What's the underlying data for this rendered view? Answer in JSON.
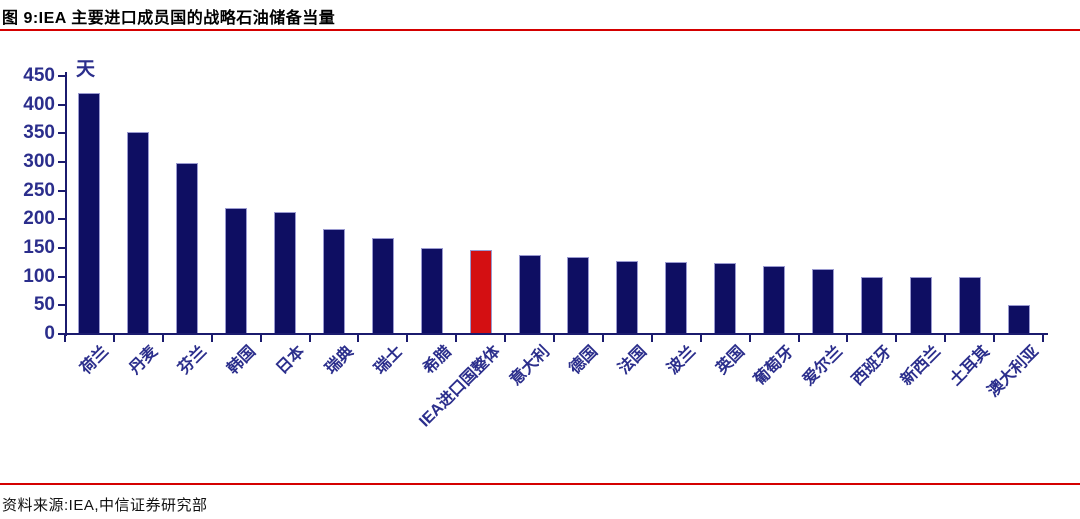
{
  "figure": {
    "title": "图 9:IEA 主要进口成员国的战略石油储备当量",
    "source": "资料来源:IEA,中信证券研究部",
    "rule_color": "#d40000"
  },
  "chart_data": {
    "type": "bar",
    "title": "IEA 主要进口成员国的战略石油储备当量",
    "unit_label": "天",
    "categories": [
      "荷兰",
      "丹麦",
      "芬兰",
      "韩国",
      "日本",
      "瑞典",
      "瑞士",
      "希腊",
      "IEA进口国整体",
      "意大利",
      "德国",
      "法国",
      "波兰",
      "英国",
      "葡萄牙",
      "爱尔兰",
      "西班牙",
      "新西兰",
      "土耳其",
      "澳大利亚"
    ],
    "values": [
      418,
      350,
      297,
      218,
      211,
      181,
      166,
      148,
      144,
      136,
      133,
      126,
      124,
      122,
      116,
      111,
      98,
      97,
      97,
      49
    ],
    "highlight_category": "IEA进口国整体",
    "highlight_index": 8,
    "ylim": [
      0,
      450
    ],
    "yticks": [
      0,
      50,
      100,
      150,
      200,
      250,
      300,
      350,
      400,
      450
    ],
    "grid": false,
    "legend": false,
    "colors": {
      "bar": "#0e0e62",
      "bar_edge": "#9a9ad0",
      "highlight_bar": "#d40f12",
      "axis": "#1b1b6e",
      "tick_label": "#2b2e8c"
    }
  }
}
